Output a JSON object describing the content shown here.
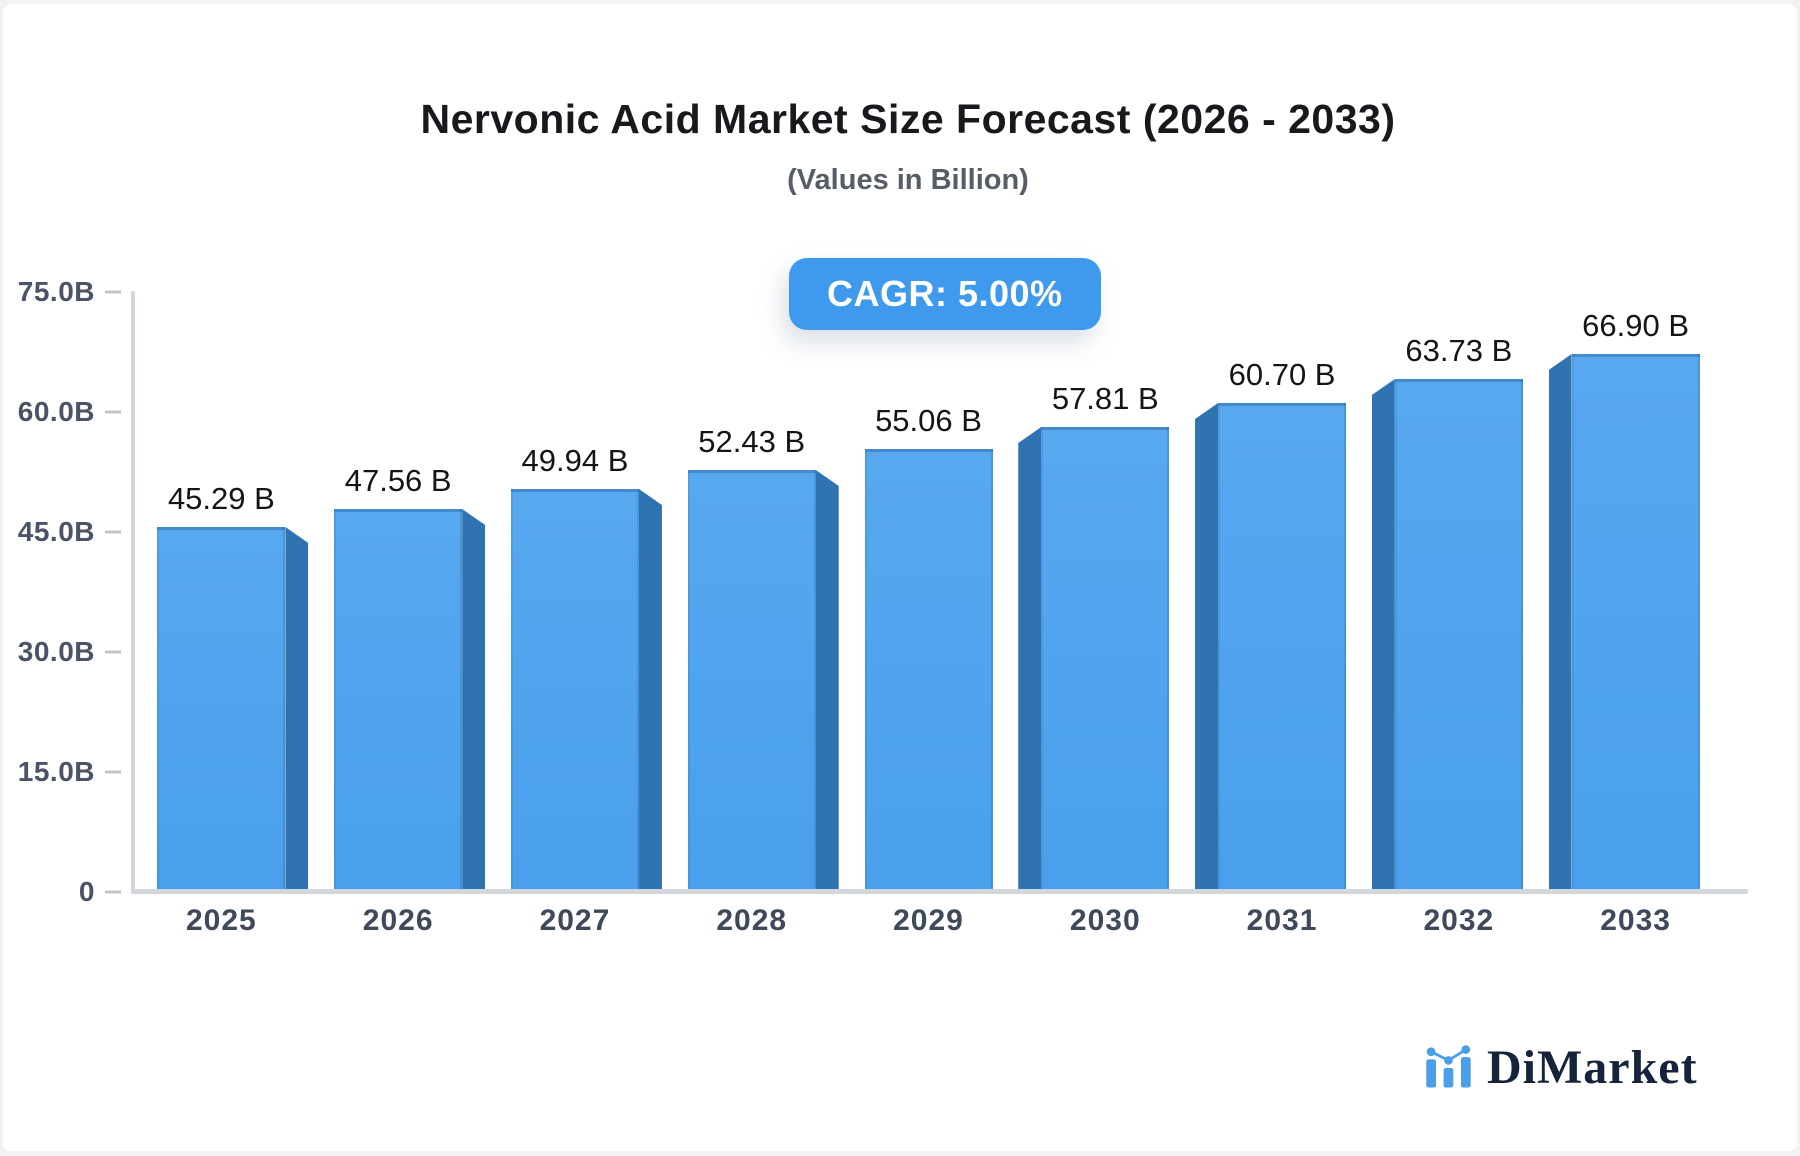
{
  "header": {
    "title": "Nervonic Acid Market Size Forecast (2026 - 2033)",
    "subtitle": "(Values in Billion)",
    "cagr_badge": "CAGR: 5.00%"
  },
  "logo": {
    "text": "DiMarket",
    "icon": "mini-bar-chart-icon"
  },
  "colors": {
    "bar_face": "#54a6ee",
    "bar_side": "#2f74b0",
    "badge_bg": "#3f9aee",
    "axis_line": "#d3d7db",
    "logo_blue": "#4a9fe8",
    "logo_navy": "#15243b"
  },
  "chart_data": {
    "type": "bar",
    "title": "Nervonic Acid Market Size Forecast (2026 - 2033)",
    "subtitle": "(Values in Billion)",
    "categories": [
      "2025",
      "2026",
      "2027",
      "2028",
      "2029",
      "2030",
      "2031",
      "2032",
      "2033"
    ],
    "values": [
      45.29,
      47.56,
      49.94,
      52.43,
      55.06,
      57.81,
      60.7,
      63.73,
      66.9
    ],
    "value_labels": [
      "45.29 B",
      "47.56 B",
      "49.94 B",
      "52.43 B",
      "55.06 B",
      "57.81 B",
      "60.70 B",
      "63.73 B",
      "66.90 B"
    ],
    "xlabel": "",
    "ylabel": "",
    "ylim": [
      0,
      75
    ],
    "y_ticks": [
      "75.0B",
      "60.0B",
      "45.0B",
      "30.0B",
      "15.0B",
      "0"
    ],
    "grid": false,
    "legend": false,
    "style": "3d-perspective-bars",
    "cagr_percent": "5.00%"
  }
}
